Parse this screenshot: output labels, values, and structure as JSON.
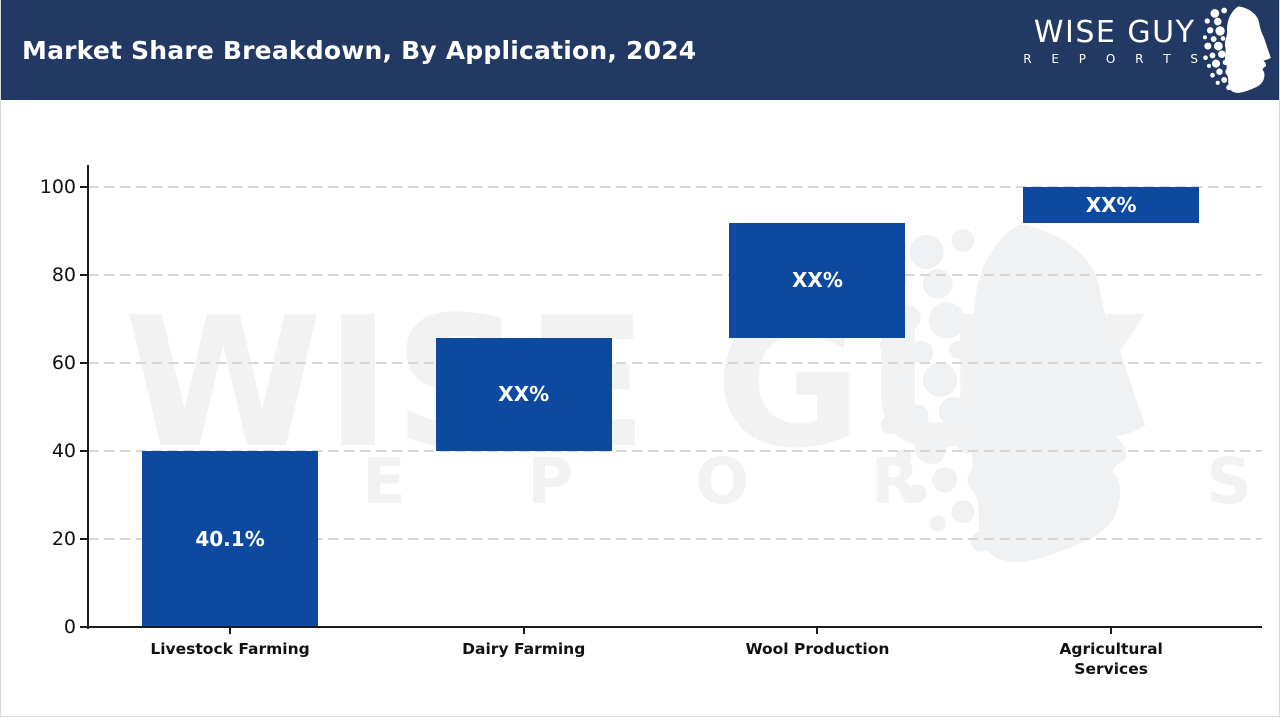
{
  "header": {
    "title": "Market Share Breakdown, By Application, 2024",
    "logo": {
      "line1": "WISE GUY",
      "line2": "R E P O R T S"
    }
  },
  "watermark": {
    "line1": "WISE GUY",
    "line2": "R E P O R T S"
  },
  "colors": {
    "header_bg": "#223a63",
    "bar": "#0d4a9f",
    "grid": "#d7d7d7",
    "axis": "#1a1a1a",
    "watermark": "#f2f2f3",
    "bar_label": "#ffffff"
  },
  "chart_data": {
    "type": "bar",
    "subtype": "waterfall-floating-bars",
    "title": "Market Share Breakdown, By Application, 2024",
    "categories": [
      "Livestock Farming",
      "Dairy Farming",
      "Wool Production",
      "Agricultural Services"
    ],
    "segments": [
      {
        "category": "Livestock Farming",
        "start": 0,
        "end": 40.1,
        "label": "40.1%"
      },
      {
        "category": "Dairy Farming",
        "start": 40.1,
        "end": 65.7,
        "label": "XX%"
      },
      {
        "category": "Wool Production",
        "start": 65.7,
        "end": 91.8,
        "label": "XX%"
      },
      {
        "category": "Agricultural Services",
        "start": 91.8,
        "end": 100,
        "label": "XX%"
      }
    ],
    "y_ticks": [
      0,
      20,
      40,
      60,
      80,
      100
    ],
    "ylim": [
      0,
      105
    ],
    "xlabel": "",
    "ylabel": "",
    "grid": "horizontal-dashed",
    "legend": "none",
    "bar_color": "#0d4a9f"
  }
}
